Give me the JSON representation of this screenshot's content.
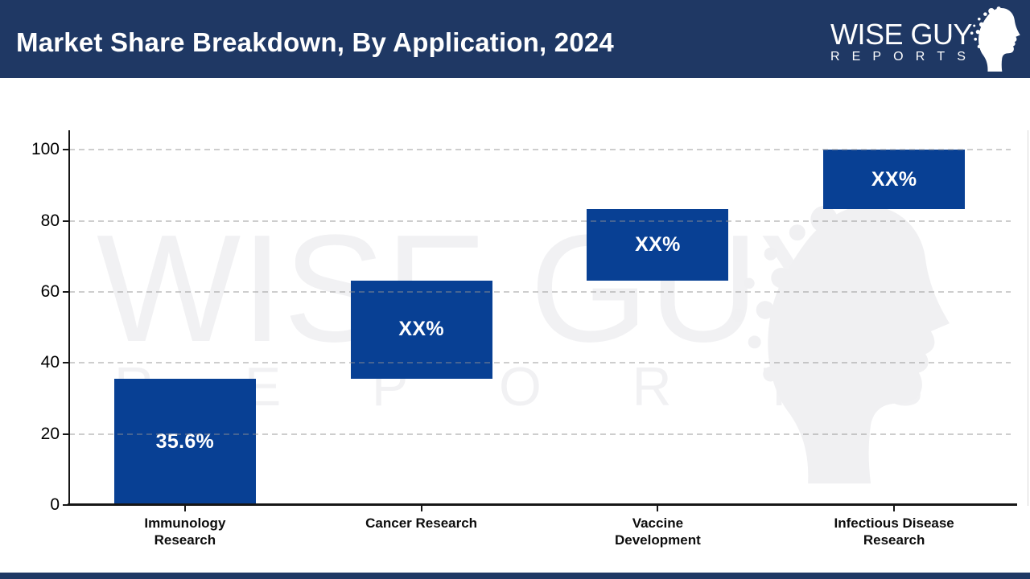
{
  "header": {
    "title": "Market Share Breakdown, By Application, 2024",
    "bg_color": "#1F3864",
    "logo": {
      "line1": "WISE GUY",
      "line2": "REPORTS"
    }
  },
  "watermark": {
    "line1": "WISE GUY",
    "line2": "REPORTS"
  },
  "chart_data": {
    "type": "bar",
    "subtype": "waterfall",
    "title": "Market Share Breakdown, By Application, 2024",
    "categories": [
      "Immunology\nResearch",
      "Cancer Research",
      "Vaccine\nDevelopment",
      "Infectious Disease\nResearch"
    ],
    "segments": [
      {
        "category": "Immunology Research",
        "start": 0,
        "end": 35.6,
        "label": "35.6%"
      },
      {
        "category": "Cancer Research",
        "start": 35.6,
        "end": 63.2,
        "label": "XX%"
      },
      {
        "category": "Vaccine Development",
        "start": 63.2,
        "end": 83.3,
        "label": "XX%"
      },
      {
        "category": "Infectious Disease Research",
        "start": 83.3,
        "end": 100,
        "label": "XX%"
      }
    ],
    "value_labels": [
      "35.6%",
      "XX%",
      "XX%",
      "XX%"
    ],
    "yticks": [
      0,
      20,
      40,
      60,
      80,
      100
    ],
    "ylim": [
      0,
      106
    ],
    "xlabel": "",
    "ylabel": "",
    "grid": "horizontal-dashed",
    "bar_color": "#084094",
    "bar_label_color": "#ffffff",
    "gridline_color": "#cccccc",
    "axis_color": "#161616"
  }
}
